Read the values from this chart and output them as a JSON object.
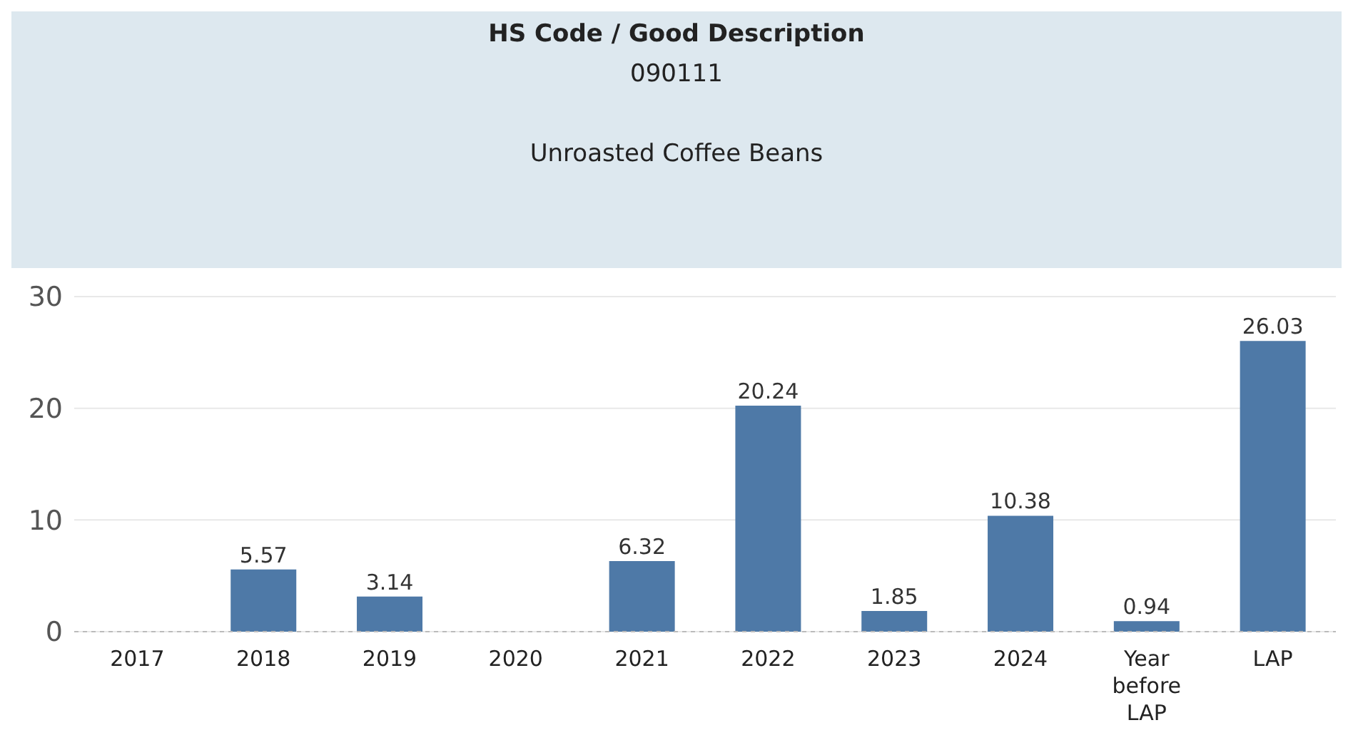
{
  "chart_data": {
    "type": "bar",
    "title": "HS Code / Good Description",
    "subtitle": "090111",
    "annotations": [
      "Unroasted Coffee Beans"
    ],
    "categories": [
      "2017",
      "2018",
      "2019",
      "2020",
      "2021",
      "2022",
      "2023",
      "2024",
      "Year before LAP",
      "LAP"
    ],
    "values": [
      null,
      5.57,
      3.14,
      null,
      6.32,
      20.24,
      1.85,
      10.38,
      0.94,
      26.03
    ],
    "color": "#4e79a7",
    "ylim": [
      0,
      30
    ],
    "yticks": [
      0,
      10,
      20,
      30
    ],
    "grid": "y",
    "data_labels": true
  }
}
